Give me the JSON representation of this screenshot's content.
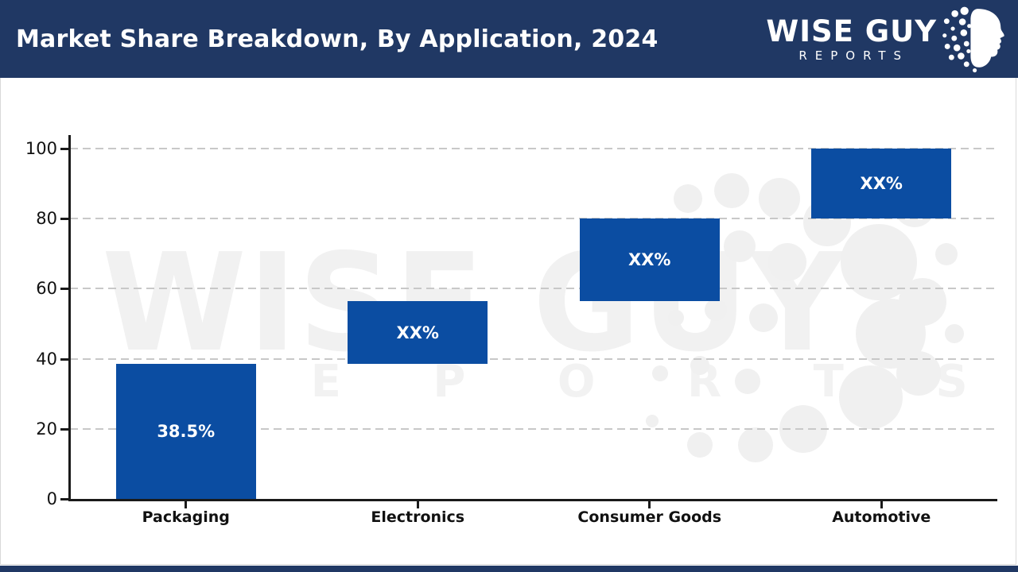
{
  "header": {
    "title": "Market Share Breakdown, By Application, 2024",
    "logo_line1": "WISE GUY",
    "logo_line2": "REPORTS"
  },
  "watermark": {
    "line1": "WISE GUY",
    "line2": "R E P O R T S"
  },
  "chart_data": {
    "type": "bar",
    "subtype": "waterfall",
    "title": "Market Share Breakdown, By Application, 2024",
    "categories": [
      "Packaging",
      "Electronics",
      "Consumer Goods",
      "Automotive"
    ],
    "series": [
      {
        "name": "Market Share",
        "segments": [
          {
            "category": "Packaging",
            "start": 0,
            "end": 38.5,
            "label": "38.5%"
          },
          {
            "category": "Electronics",
            "start": 38.5,
            "end": 56.5,
            "label": "XX%"
          },
          {
            "category": "Consumer Goods",
            "start": 56.5,
            "end": 80,
            "label": "XX%"
          },
          {
            "category": "Automotive",
            "start": 80,
            "end": 100,
            "label": "XX%"
          }
        ]
      }
    ],
    "xlabel": "",
    "ylabel": "",
    "yticks": [
      0,
      20,
      40,
      60,
      80,
      100
    ],
    "ylim": [
      0,
      104
    ],
    "grid": "horizontal-dashed",
    "legend": "none",
    "bar_color": "#0B4DA2",
    "bar_label_color": "#FFFFFF"
  },
  "colors": {
    "header_bg": "#203864",
    "footer_bg": "#203864",
    "bar": "#0B4DA2",
    "grid": "#C8C8C8",
    "axis": "#1A1A1A",
    "watermark": "#F1F1F1"
  }
}
